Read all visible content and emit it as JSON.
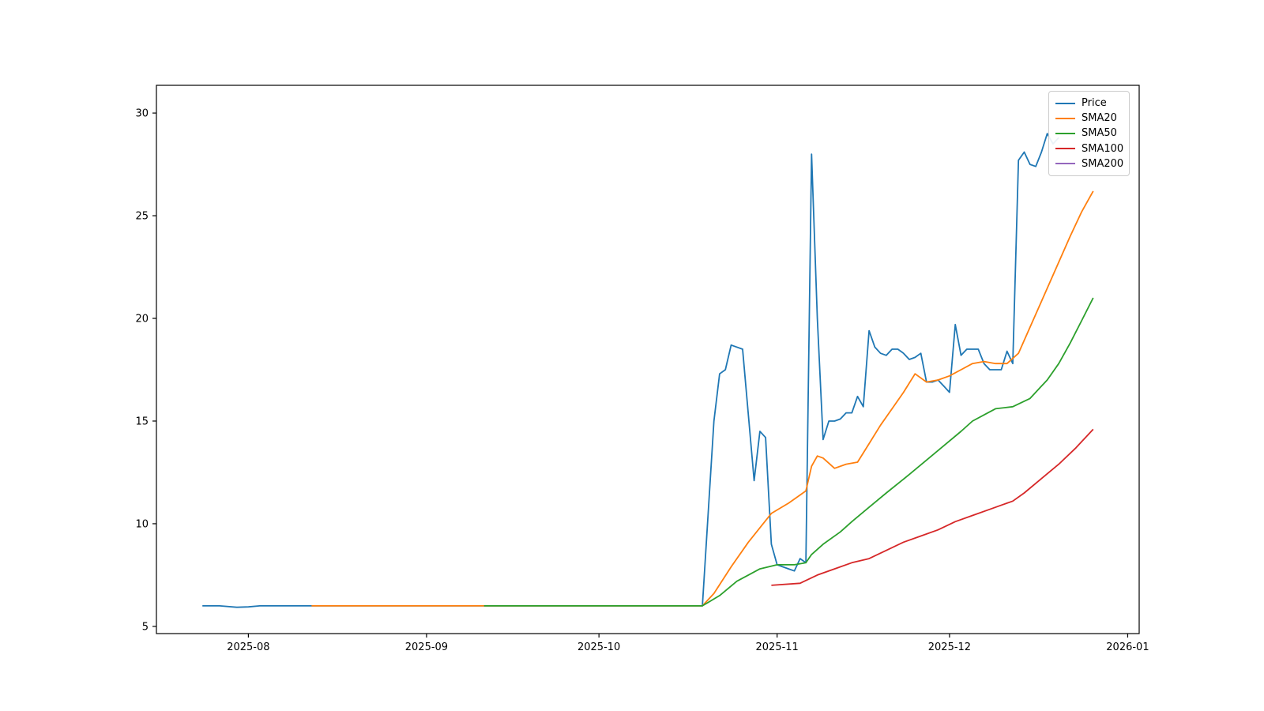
{
  "figure": {
    "kind": "matplotlib-line-chart",
    "background": "#ffffff",
    "frame_color": "#000000"
  },
  "chart_data": {
    "type": "line",
    "title": "",
    "xlabel": "",
    "ylabel": "",
    "grid": false,
    "xlim": [
      "2025-07-16",
      "2026-01-03"
    ],
    "ylim": [
      4.65,
      31.35
    ],
    "x_axis": {
      "ticks": [
        {
          "label": "2025-08",
          "date": "2025-08-01"
        },
        {
          "label": "2025-09",
          "date": "2025-09-01"
        },
        {
          "label": "2025-10",
          "date": "2025-10-01"
        },
        {
          "label": "2025-11",
          "date": "2025-11-01"
        },
        {
          "label": "2025-12",
          "date": "2025-12-01"
        },
        {
          "label": "2026-01",
          "date": "2026-01-01"
        }
      ]
    },
    "y_axis": {
      "ticks": [
        5,
        10,
        15,
        20,
        25,
        30
      ]
    },
    "legend": {
      "position": "upper right",
      "entries": [
        "Price",
        "SMA20",
        "SMA50",
        "SMA100",
        "SMA200"
      ]
    },
    "series": [
      {
        "name": "Price",
        "color": "#1f77b4",
        "points": [
          [
            "2025-07-24",
            6.0
          ],
          [
            "2025-07-27",
            6.0
          ],
          [
            "2025-07-30",
            5.93
          ],
          [
            "2025-08-01",
            5.95
          ],
          [
            "2025-08-03",
            6.0
          ],
          [
            "2025-10-19",
            6.0
          ],
          [
            "2025-10-21",
            15.0
          ],
          [
            "2025-10-22",
            17.3
          ],
          [
            "2025-10-23",
            17.5
          ],
          [
            "2025-10-24",
            18.7
          ],
          [
            "2025-10-26",
            18.5
          ],
          [
            "2025-10-28",
            12.1
          ],
          [
            "2025-10-29",
            14.5
          ],
          [
            "2025-10-30",
            14.2
          ],
          [
            "2025-10-31",
            9.0
          ],
          [
            "2025-11-01",
            8.0
          ],
          [
            "2025-11-03",
            7.8
          ],
          [
            "2025-11-04",
            7.7
          ],
          [
            "2025-11-05",
            8.3
          ],
          [
            "2025-11-06",
            8.1
          ],
          [
            "2025-11-07",
            28.0
          ],
          [
            "2025-11-08",
            20.0
          ],
          [
            "2025-11-09",
            14.1
          ],
          [
            "2025-11-10",
            15.0
          ],
          [
            "2025-11-11",
            15.0
          ],
          [
            "2025-11-12",
            15.1
          ],
          [
            "2025-11-13",
            15.4
          ],
          [
            "2025-11-14",
            15.4
          ],
          [
            "2025-11-15",
            16.2
          ],
          [
            "2025-11-16",
            15.7
          ],
          [
            "2025-11-17",
            19.4
          ],
          [
            "2025-11-18",
            18.6
          ],
          [
            "2025-11-19",
            18.3
          ],
          [
            "2025-11-20",
            18.2
          ],
          [
            "2025-11-21",
            18.5
          ],
          [
            "2025-11-22",
            18.5
          ],
          [
            "2025-11-23",
            18.3
          ],
          [
            "2025-11-24",
            18.0
          ],
          [
            "2025-11-25",
            18.1
          ],
          [
            "2025-11-26",
            18.3
          ],
          [
            "2025-11-27",
            16.9
          ],
          [
            "2025-11-28",
            16.9
          ],
          [
            "2025-11-29",
            17.0
          ],
          [
            "2025-11-30",
            16.7
          ],
          [
            "2025-12-01",
            16.4
          ],
          [
            "2025-12-02",
            19.7
          ],
          [
            "2025-12-03",
            18.2
          ],
          [
            "2025-12-04",
            18.5
          ],
          [
            "2025-12-06",
            18.5
          ],
          [
            "2025-12-07",
            17.8
          ],
          [
            "2025-12-08",
            17.5
          ],
          [
            "2025-12-10",
            17.5
          ],
          [
            "2025-12-11",
            18.4
          ],
          [
            "2025-12-12",
            17.8
          ],
          [
            "2025-12-13",
            27.7
          ],
          [
            "2025-12-14",
            28.1
          ],
          [
            "2025-12-15",
            27.5
          ],
          [
            "2025-12-16",
            27.4
          ],
          [
            "2025-12-17",
            28.1
          ],
          [
            "2025-12-18",
            29.0
          ],
          [
            "2025-12-19",
            28.5
          ],
          [
            "2025-12-20",
            28.8
          ]
        ]
      },
      {
        "name": "SMA20",
        "color": "#ff7f0e",
        "points": [
          [
            "2025-08-12",
            6.0
          ],
          [
            "2025-10-19",
            6.0
          ],
          [
            "2025-10-21",
            6.6
          ],
          [
            "2025-10-24",
            7.9
          ],
          [
            "2025-10-27",
            9.1
          ],
          [
            "2025-10-29",
            9.8
          ],
          [
            "2025-10-31",
            10.5
          ],
          [
            "2025-11-03",
            11.0
          ],
          [
            "2025-11-06",
            11.6
          ],
          [
            "2025-11-07",
            12.8
          ],
          [
            "2025-11-08",
            13.3
          ],
          [
            "2025-11-09",
            13.2
          ],
          [
            "2025-11-11",
            12.7
          ],
          [
            "2025-11-13",
            12.9
          ],
          [
            "2025-11-15",
            13.0
          ],
          [
            "2025-11-17",
            13.9
          ],
          [
            "2025-11-19",
            14.8
          ],
          [
            "2025-11-21",
            15.6
          ],
          [
            "2025-11-23",
            16.4
          ],
          [
            "2025-11-25",
            17.3
          ],
          [
            "2025-11-27",
            16.9
          ],
          [
            "2025-11-29",
            17.0
          ],
          [
            "2025-12-01",
            17.2
          ],
          [
            "2025-12-03",
            17.5
          ],
          [
            "2025-12-05",
            17.8
          ],
          [
            "2025-12-07",
            17.9
          ],
          [
            "2025-12-09",
            17.8
          ],
          [
            "2025-12-11",
            17.8
          ],
          [
            "2025-12-13",
            18.3
          ],
          [
            "2025-12-16",
            20.2
          ],
          [
            "2025-12-19",
            22.1
          ],
          [
            "2025-12-22",
            24.0
          ],
          [
            "2025-12-24",
            25.2
          ],
          [
            "2025-12-26",
            26.2
          ]
        ]
      },
      {
        "name": "SMA50",
        "color": "#2ca02c",
        "points": [
          [
            "2025-09-11",
            6.0
          ],
          [
            "2025-10-19",
            6.0
          ],
          [
            "2025-10-22",
            6.5
          ],
          [
            "2025-10-25",
            7.2
          ],
          [
            "2025-10-27",
            7.5
          ],
          [
            "2025-10-29",
            7.8
          ],
          [
            "2025-11-01",
            8.0
          ],
          [
            "2025-11-04",
            8.0
          ],
          [
            "2025-11-06",
            8.1
          ],
          [
            "2025-11-07",
            8.5
          ],
          [
            "2025-11-09",
            9.0
          ],
          [
            "2025-11-12",
            9.6
          ],
          [
            "2025-11-14",
            10.1
          ],
          [
            "2025-11-17",
            10.8
          ],
          [
            "2025-11-20",
            11.5
          ],
          [
            "2025-11-24",
            12.4
          ],
          [
            "2025-11-27",
            13.1
          ],
          [
            "2025-11-30",
            13.8
          ],
          [
            "2025-12-03",
            14.5
          ],
          [
            "2025-12-05",
            15.0
          ],
          [
            "2025-12-07",
            15.3
          ],
          [
            "2025-12-09",
            15.6
          ],
          [
            "2025-12-12",
            15.7
          ],
          [
            "2025-12-15",
            16.1
          ],
          [
            "2025-12-17",
            16.7
          ],
          [
            "2025-12-18",
            17.0
          ],
          [
            "2025-12-20",
            17.8
          ],
          [
            "2025-12-22",
            18.8
          ],
          [
            "2025-12-24",
            19.9
          ],
          [
            "2025-12-26",
            21.0
          ]
        ]
      },
      {
        "name": "SMA100",
        "color": "#d62728",
        "points": [
          [
            "2025-10-31",
            7.0
          ],
          [
            "2025-11-05",
            7.1
          ],
          [
            "2025-11-08",
            7.5
          ],
          [
            "2025-11-11",
            7.8
          ],
          [
            "2025-11-14",
            8.1
          ],
          [
            "2025-11-17",
            8.3
          ],
          [
            "2025-11-20",
            8.7
          ],
          [
            "2025-11-23",
            9.1
          ],
          [
            "2025-11-26",
            9.4
          ],
          [
            "2025-11-29",
            9.7
          ],
          [
            "2025-12-02",
            10.1
          ],
          [
            "2025-12-05",
            10.4
          ],
          [
            "2025-12-08",
            10.7
          ],
          [
            "2025-12-11",
            11.0
          ],
          [
            "2025-12-12",
            11.1
          ],
          [
            "2025-12-14",
            11.5
          ],
          [
            "2025-12-17",
            12.2
          ],
          [
            "2025-12-20",
            12.9
          ],
          [
            "2025-12-23",
            13.7
          ],
          [
            "2025-12-26",
            14.6
          ]
        ]
      },
      {
        "name": "SMA200",
        "color": "#9467bd",
        "points": []
      }
    ]
  }
}
